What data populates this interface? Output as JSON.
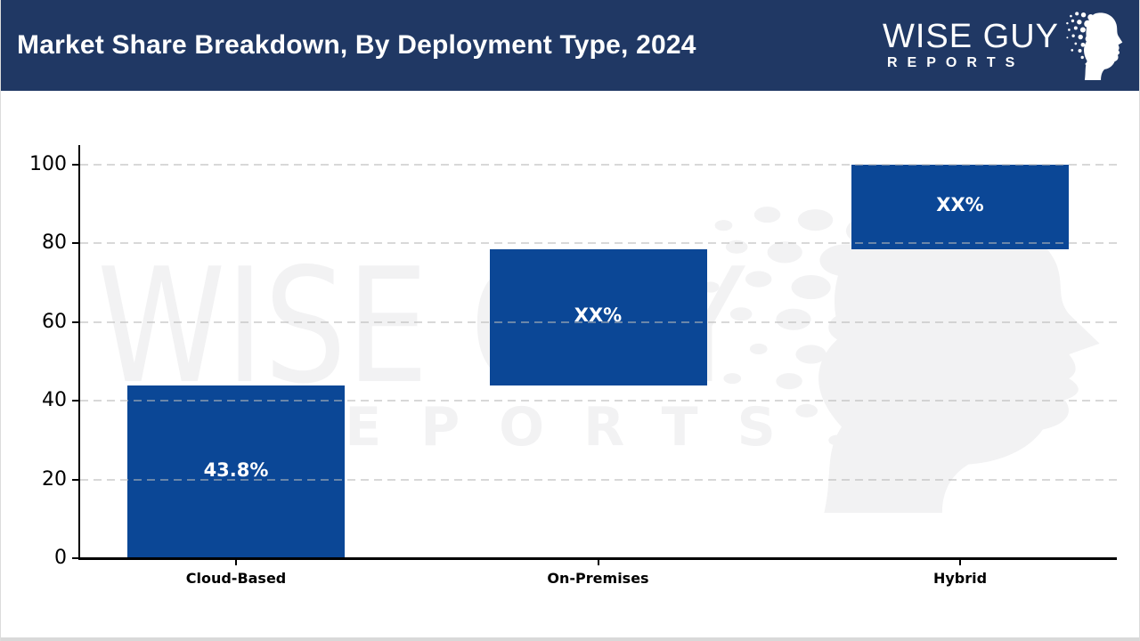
{
  "header": {
    "title": "Market Share Breakdown, By Deployment Type, 2024",
    "logo": {
      "wordmark": "WISE GUY",
      "tagline": "REPORTS"
    }
  },
  "watermark": {
    "wordmark": "WISE GUY",
    "tagline": "REPORTS"
  },
  "chart_data": {
    "type": "bar",
    "variant": "stacked-waterfall-percent",
    "title": "Market Share Breakdown, By Deployment Type, 2024",
    "categories": [
      "Cloud-Based",
      "On-Premises",
      "Hybrid"
    ],
    "segments": [
      {
        "category": "Cloud-Based",
        "start": 0,
        "end": 43.8,
        "label": "43.8%"
      },
      {
        "category": "On-Premises",
        "start": 43.8,
        "end": 78.5,
        "label": "XX%"
      },
      {
        "category": "Hybrid",
        "start": 78.5,
        "end": 100,
        "label": "XX%"
      }
    ],
    "xlabel": "",
    "ylabel": "",
    "ylim": [
      0,
      100
    ],
    "yticks": [
      0,
      20,
      40,
      60,
      80,
      100
    ],
    "grid": "horizontal-dashed",
    "legend": "none",
    "bar_color": "#0B4796",
    "bar_label_color": "#FFFFFF"
  },
  "colors": {
    "header_bg": "#203864",
    "watermark": "#F2F2F3",
    "grid": "#D9D9D9",
    "axis": "#000000",
    "bottom_strip": "#D9D9D9"
  }
}
